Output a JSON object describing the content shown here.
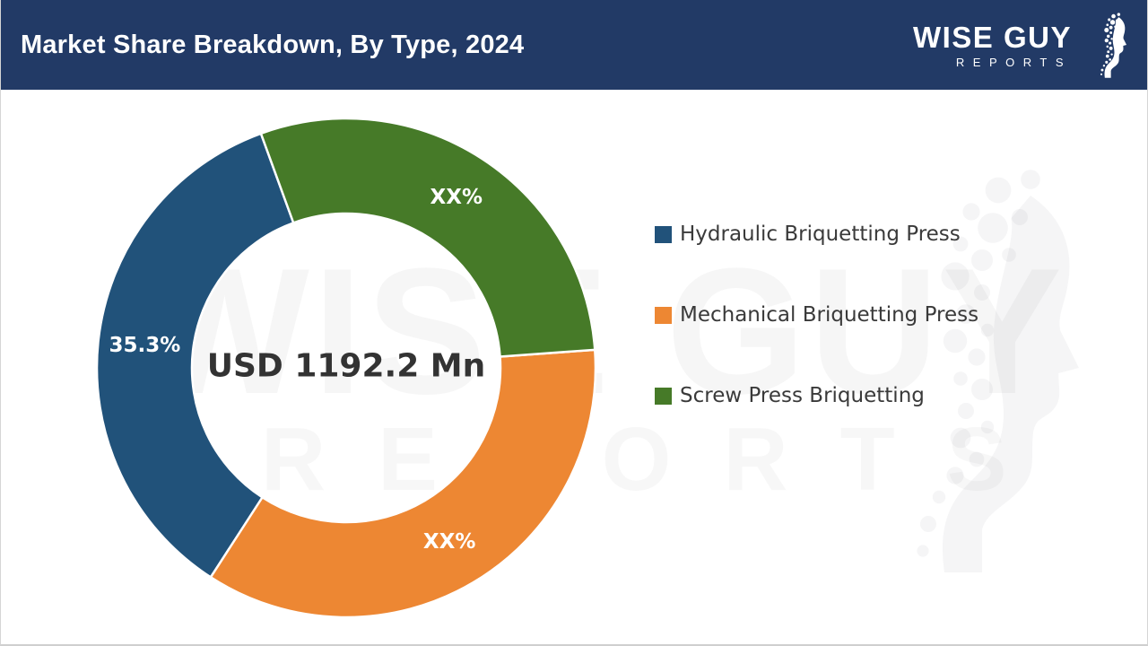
{
  "header": {
    "title": "Market Share Breakdown, By Type, 2024",
    "bg_color": "#223A66",
    "logo": {
      "line1": "WISE GUY",
      "line2": "REPORTS"
    }
  },
  "watermark": {
    "line1": "WISE GUY",
    "line2": "REPORTS"
  },
  "chart_data": {
    "type": "pie",
    "subtype": "donut",
    "center_label": "USD 1192.2 Mn",
    "legend_position": "right",
    "start_angle_deg": 110,
    "direction": "counterclockwise",
    "outer_radius": 278,
    "inner_radius": 172,
    "label_radius": 226,
    "segments": [
      {
        "label": "Hydraulic Briquetting Press",
        "display_value": "35.3%",
        "value_pct_est": 35.3,
        "color": "#21527A"
      },
      {
        "label": "Mechanical Briquetting Press",
        "display_value": "XX%",
        "value_pct_est": 35.3,
        "color": "#ED8733"
      },
      {
        "label": "Screw Press Briquetting",
        "display_value": "XX%",
        "value_pct_est": 29.4,
        "color": "#467A28"
      }
    ]
  }
}
